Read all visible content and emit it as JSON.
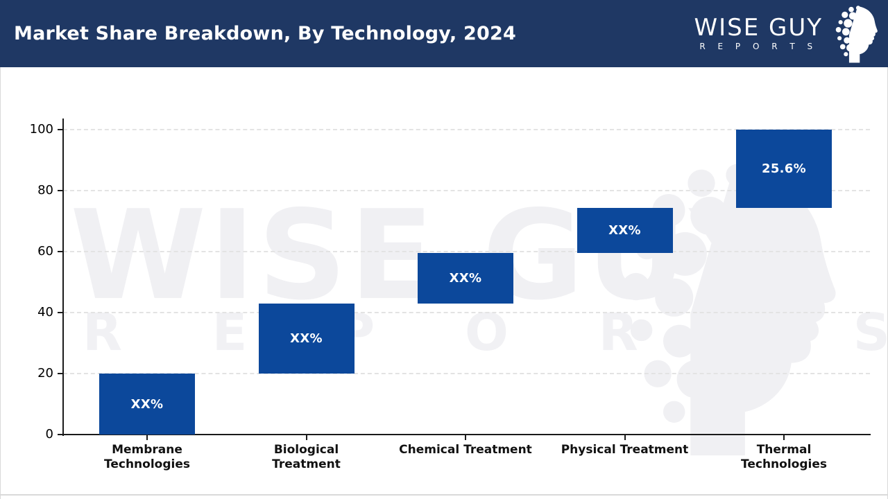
{
  "header": {
    "title": "Market Share Breakdown, By Technology, 2024",
    "bg_color": "#1F3864",
    "logo": {
      "wordmark": "WISE GUY",
      "subtext": "R E P O R T S"
    }
  },
  "watermark": {
    "wordmark": "WISE GUY",
    "subtext": "R E P O R T S"
  },
  "chart_data": {
    "type": "bar",
    "subtype": "waterfall",
    "title": "Market Share Breakdown, By Technology, 2024",
    "categories": [
      "Membrane Technologies",
      "Biological Treatment",
      "Chemical Treatment",
      "Physical Treatment",
      "Thermal Technologies"
    ],
    "bars": [
      {
        "category": "Membrane Technologies",
        "label_lines": [
          "Membrane",
          "Technologies"
        ],
        "base": 0,
        "top": 20,
        "value_label": "XX%"
      },
      {
        "category": "Biological Treatment",
        "label_lines": [
          "Biological",
          "Treatment"
        ],
        "base": 20,
        "top": 43,
        "value_label": "XX%"
      },
      {
        "category": "Chemical Treatment",
        "label_lines": [
          "Chemical Treatment"
        ],
        "base": 43,
        "top": 59.5,
        "value_label": "XX%"
      },
      {
        "category": "Physical Treatment",
        "label_lines": [
          "Physical Treatment"
        ],
        "base": 59.5,
        "top": 74.4,
        "value_label": "XX%"
      },
      {
        "category": "Thermal Technologies",
        "label_lines": [
          "Thermal",
          "Technologies"
        ],
        "base": 74.4,
        "top": 100,
        "value_label": "25.6%"
      }
    ],
    "ylim": [
      0,
      100
    ],
    "yticks": [
      0,
      20,
      40,
      60,
      80,
      100
    ],
    "xlabel": "",
    "ylabel": "",
    "grid": "horizontal-dashed",
    "legend": "none",
    "bar_color": "#0C489B",
    "value_label_color": "#FFFFFF",
    "axis_color": "#1a1a1a"
  }
}
